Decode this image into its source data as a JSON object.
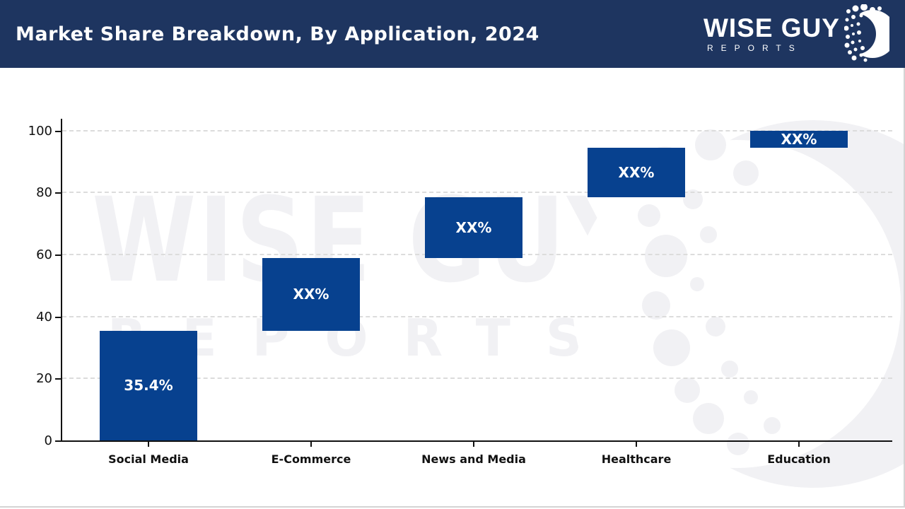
{
  "header": {
    "title": "Market Share Breakdown, By Application, 2024",
    "logo": {
      "line1": "WISE GUY",
      "line2": "REPORTS"
    }
  },
  "watermark": {
    "line1": "WISE GUY",
    "line2": "REPORTS"
  },
  "chart_data": {
    "type": "bar",
    "subtype": "waterfall-floating-bars",
    "title": "Market Share Breakdown, By Application, 2024",
    "categories": [
      "Social Media",
      "E-Commerce",
      "News and Media",
      "Healthcare",
      "Education"
    ],
    "segments": [
      {
        "category": "Social Media",
        "start": 0,
        "end": 35.4,
        "size": 35.4,
        "label": "35.4%"
      },
      {
        "category": "E-Commerce",
        "start": 35.4,
        "end": 58.8,
        "size": 23.4,
        "label": "XX%"
      },
      {
        "category": "News and Media",
        "start": 58.8,
        "end": 78.4,
        "size": 19.6,
        "label": "XX%"
      },
      {
        "category": "Healthcare",
        "start": 78.4,
        "end": 94.3,
        "size": 15.9,
        "label": "XX%"
      },
      {
        "category": "Education",
        "start": 94.3,
        "end": 100,
        "size": 5.7,
        "label": "XX%"
      }
    ],
    "xlabel": "",
    "ylabel": "",
    "ylim": [
      0,
      104
    ],
    "yticks": [
      0,
      20,
      40,
      60,
      80,
      100
    ],
    "grid": "horizontal dashed, above watermark, behind bars",
    "legend": "none",
    "bar_color": "#07418f",
    "bar_label_color": "#ffffff",
    "header_bg_color": "#1e3560",
    "grid_color": "#dcdcdc"
  }
}
